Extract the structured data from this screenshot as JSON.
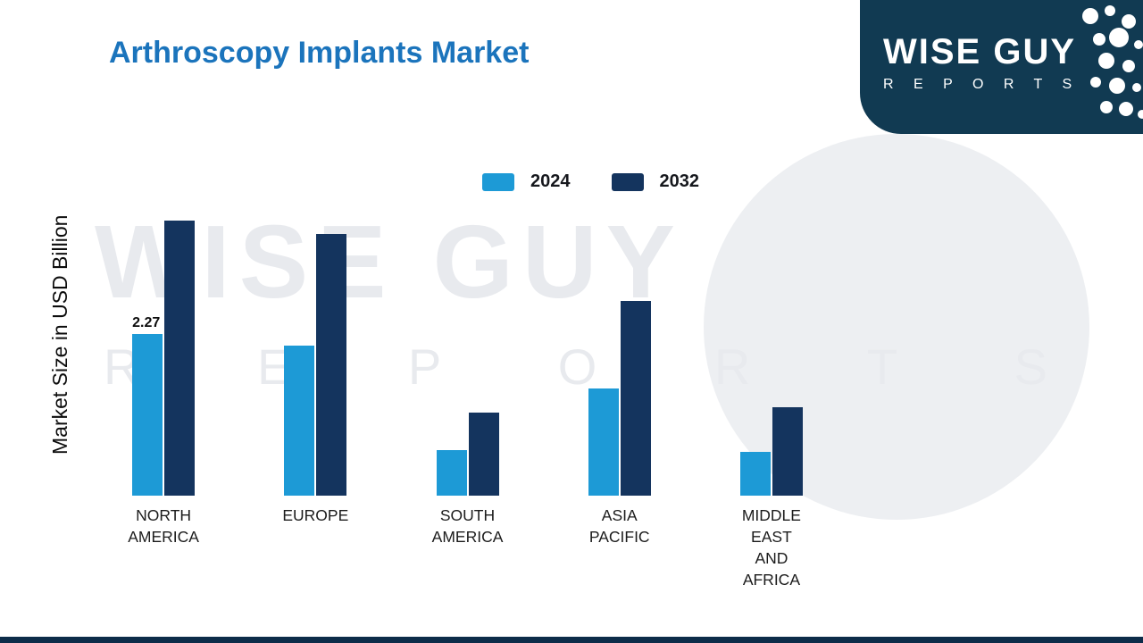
{
  "page": {
    "title": "Arthroscopy Implants Market"
  },
  "logo": {
    "wordmark": "WISE GUY",
    "subtext": "R E P O R T S"
  },
  "watermark": {
    "wordmark": "WISE GUY",
    "subtext": "R E P O R T S"
  },
  "colors": {
    "title": "#1b74bc",
    "series_2024": "#1d9ad6",
    "series_2032": "#14345e",
    "logo_bg": "#113a52",
    "footer": "#0d2c49",
    "watermark": "#e8eaee"
  },
  "chart_data": {
    "type": "bar",
    "title": "Arthroscopy Implants Market",
    "ylabel": "Market Size in USD Billion",
    "xlabel": "",
    "unit": "USD Billion",
    "ylim": [
      0,
      4.2
    ],
    "grid": false,
    "legend_position": "top-center",
    "categories": [
      "NORTH AMERICA",
      "EUROPE",
      "SOUTH AMERICA",
      "ASIA PACIFIC",
      "MIDDLE EAST AND AFRICA"
    ],
    "category_lines": [
      [
        "NORTH",
        "AMERICA"
      ],
      [
        "EUROPE"
      ],
      [
        "SOUTH",
        "AMERICA"
      ],
      [
        "ASIA",
        "PACIFIC"
      ],
      [
        "MIDDLE",
        "EAST",
        "AND",
        "AFRICA"
      ]
    ],
    "series": [
      {
        "name": "2024",
        "color": "#1d9ad6",
        "values": [
          2.27,
          2.1,
          0.64,
          1.5,
          0.61
        ]
      },
      {
        "name": "2032",
        "color": "#14345e",
        "values": [
          3.86,
          3.67,
          1.17,
          2.73,
          1.24
        ]
      }
    ],
    "data_labels": [
      {
        "series_index": 0,
        "category_index": 0,
        "text": "2.27"
      }
    ]
  }
}
